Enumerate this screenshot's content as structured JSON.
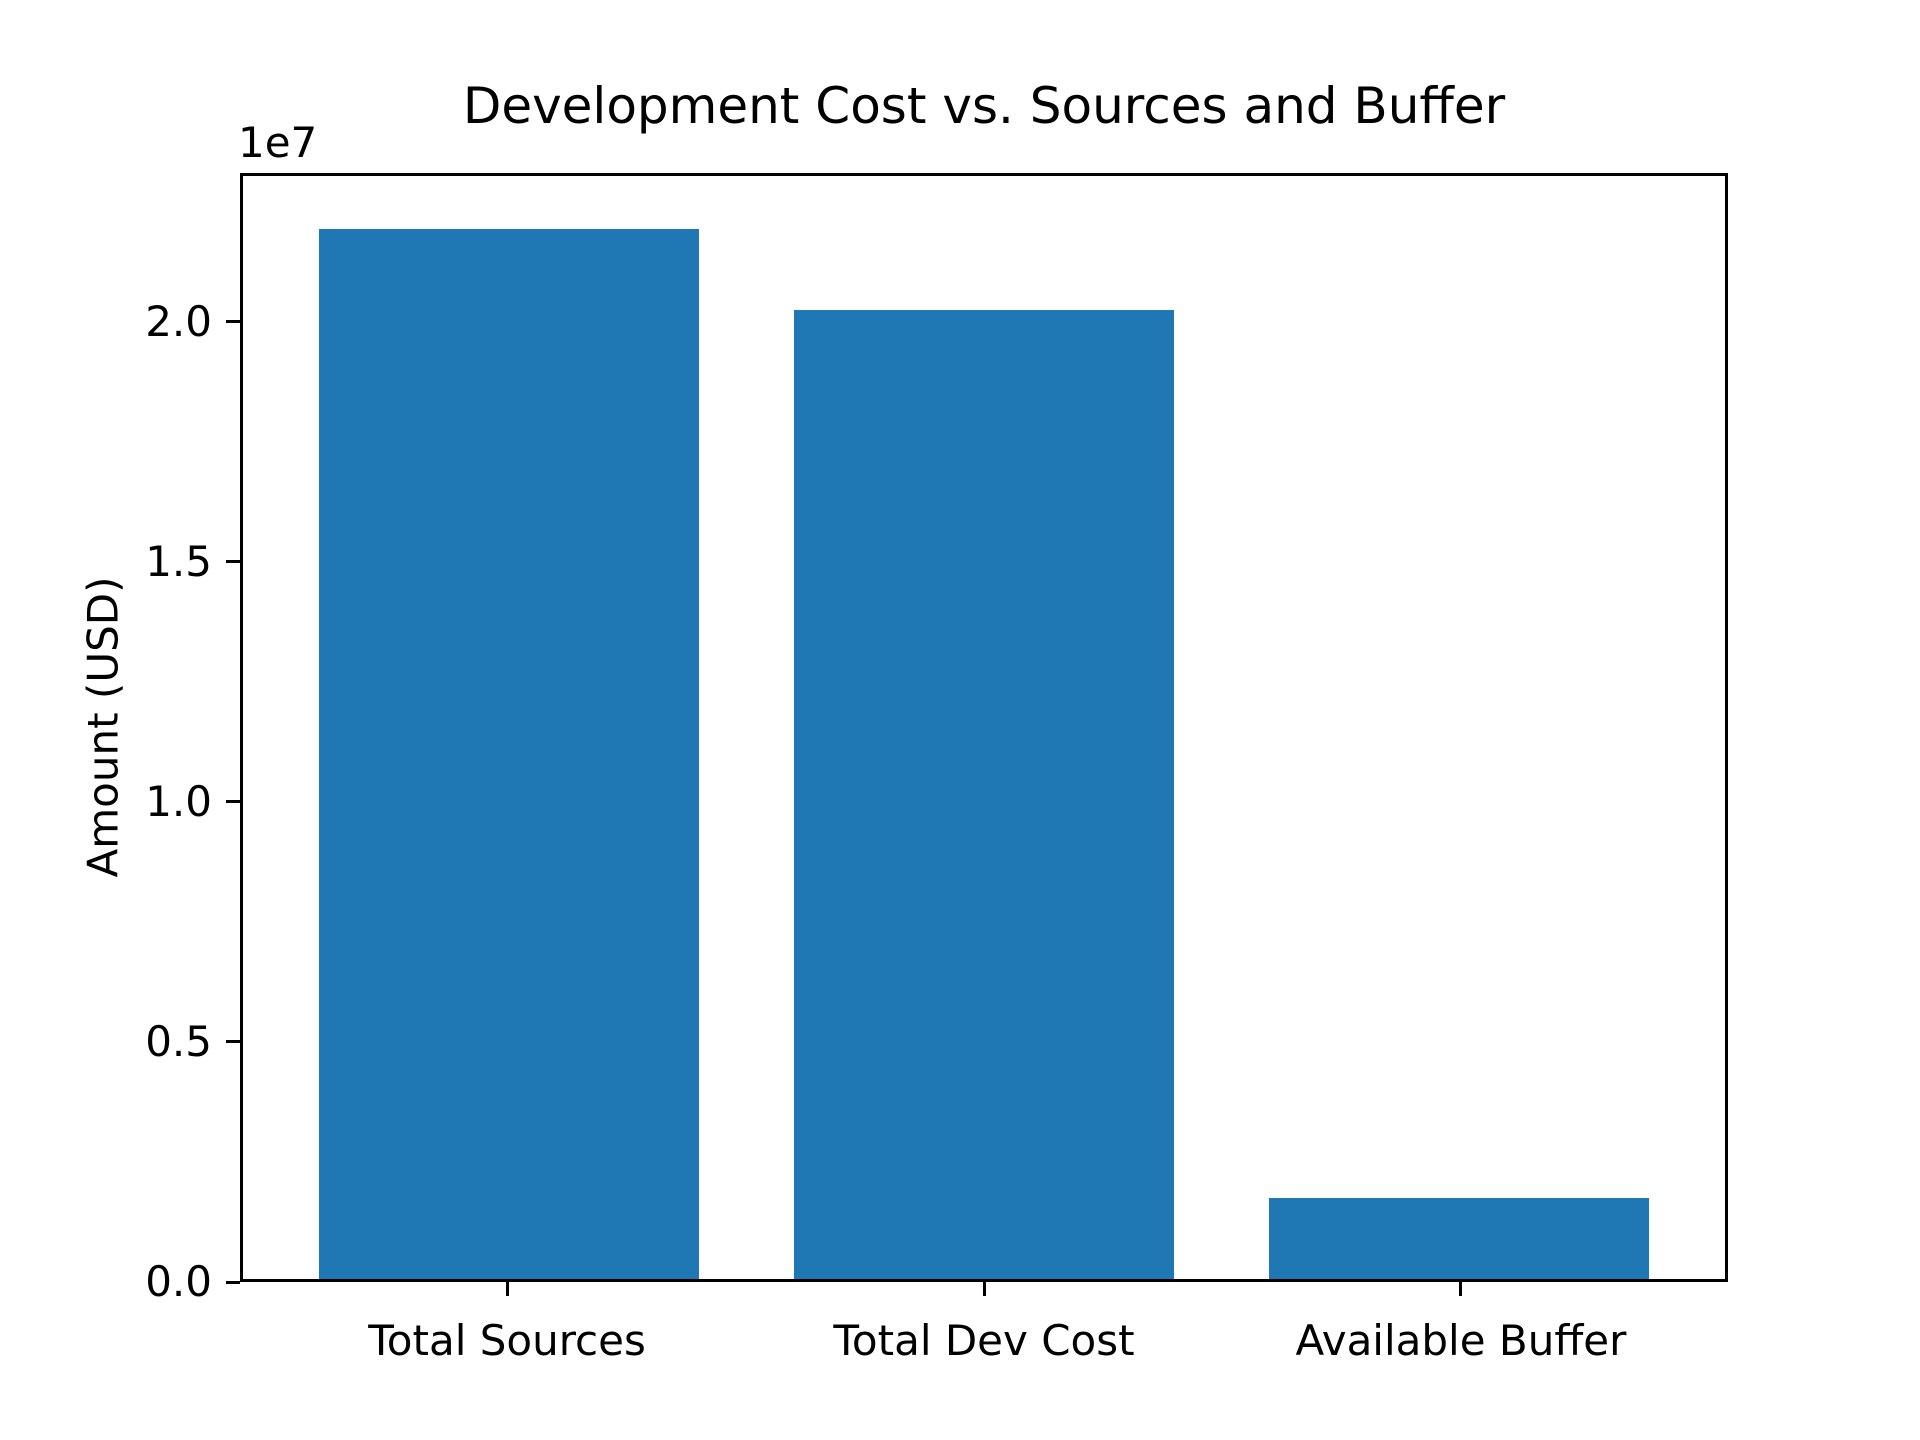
{
  "chart_data": {
    "type": "bar",
    "title": "Development Cost vs. Sources and Buffer",
    "xlabel": "",
    "ylabel": "Amount (USD)",
    "y_offset_label": "1e7",
    "categories": [
      "Total Sources",
      "Total Dev Cost",
      "Available Buffer"
    ],
    "values": [
      22000000,
      20300000,
      1700000
    ],
    "bar_color": "#1f77b4",
    "ylim": [
      0,
      23100000
    ],
    "yticks": [
      {
        "value": 0,
        "label": "0.0"
      },
      {
        "value": 5000000,
        "label": "0.5"
      },
      {
        "value": 10000000,
        "label": "1.0"
      },
      {
        "value": 15000000,
        "label": "1.5"
      },
      {
        "value": 20000000,
        "label": "2.0"
      }
    ],
    "grid": false,
    "legend_position": "none",
    "colors": {
      "background": "#ffffff",
      "text": "#000000",
      "spine": "#000000"
    }
  }
}
